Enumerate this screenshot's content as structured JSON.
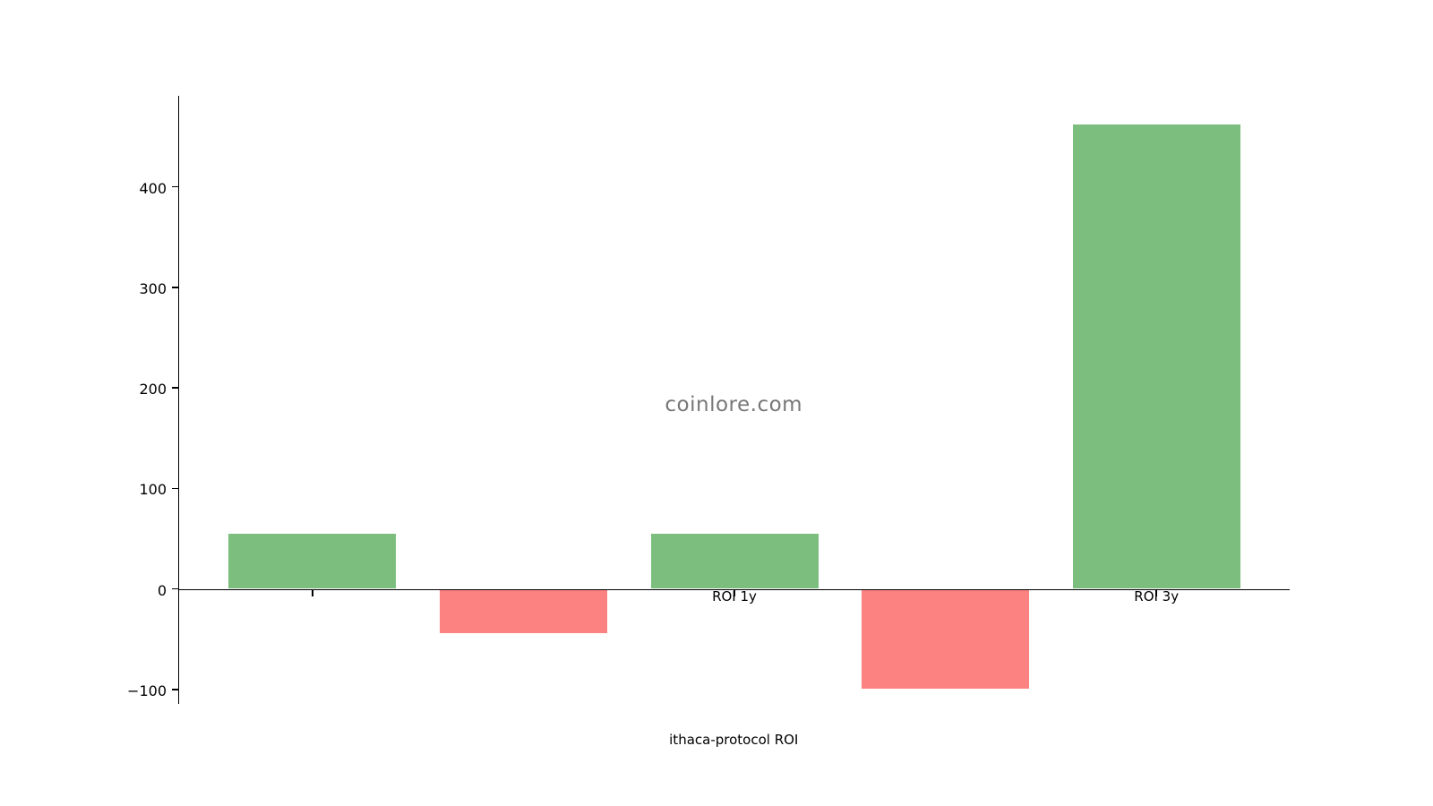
{
  "chart_data": {
    "type": "bar",
    "title": "ithaca-protocol ROI",
    "watermark": "coinlore.com",
    "categories": [
      "",
      "",
      "ROI 1y",
      "",
      "ROI 3y"
    ],
    "values": [
      55,
      -44,
      55,
      -99,
      462
    ],
    "xlabel": "",
    "ylabel": "",
    "grid": false,
    "legend": null,
    "ylim": [
      -114,
      491
    ],
    "yticks": [
      {
        "value": -100,
        "label": "−100"
      },
      {
        "value": 0,
        "label": "0"
      },
      {
        "value": 100,
        "label": "100"
      },
      {
        "value": 200,
        "label": "200"
      },
      {
        "value": 300,
        "label": "300"
      },
      {
        "value": 400,
        "label": "400"
      }
    ],
    "xticks": [
      {
        "index": 0,
        "label": ""
      },
      {
        "index": 2,
        "label": "ROI 1y"
      },
      {
        "index": 4,
        "label": "ROI 3y"
      }
    ],
    "bar_colors": {
      "positive": "#7cbe7e",
      "negative": "#fc8181"
    }
  },
  "colors": {
    "axis": "#000000",
    "tick_text": "#000000",
    "watermark": "#777777",
    "background": "#ffffff"
  }
}
